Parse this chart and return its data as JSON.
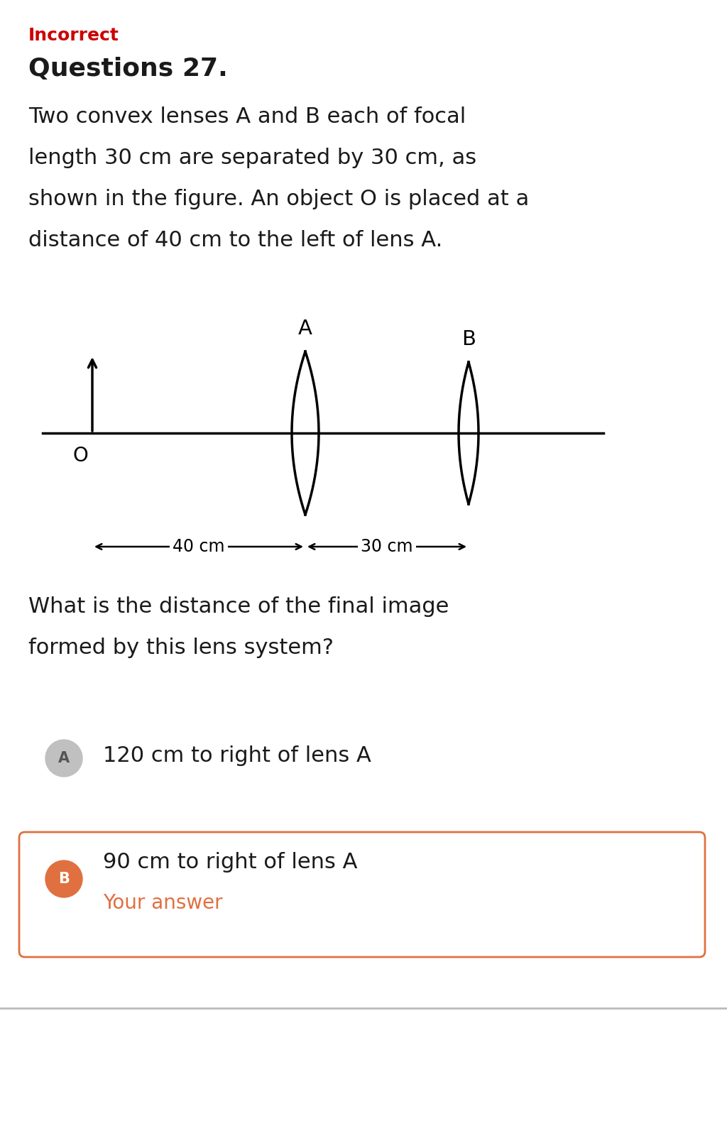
{
  "incorrect_text": "Incorrect",
  "incorrect_color": "#cc0000",
  "question_title": "Questions 27.",
  "body_text_lines": [
    "Two convex lenses A and B each of focal",
    "length 30 cm are separated by 30 cm, as",
    "shown in the figure. An object O is placed at a",
    "distance of 40 cm to the left of lens A."
  ],
  "question_text_lines": [
    "What is the distance of the final image",
    "formed by this lens system?"
  ],
  "option_A_text": "120 cm to right of lens A",
  "option_B_text": "90 cm to right of lens A",
  "your_answer_text": "Your answer",
  "your_answer_color": "#e07040",
  "option_A_circle_color": "#c0c0c0",
  "option_A_letter_color": "#555555",
  "option_B_circle_color": "#e07040",
  "option_B_box_border_color": "#e07040",
  "bg_color": "#ffffff",
  "text_color": "#1a1a1a",
  "diagram": {
    "arrow_label_40": "40 cm",
    "arrow_label_30": "30 cm",
    "label_A": "A",
    "label_B": "B",
    "label_O": "O"
  }
}
